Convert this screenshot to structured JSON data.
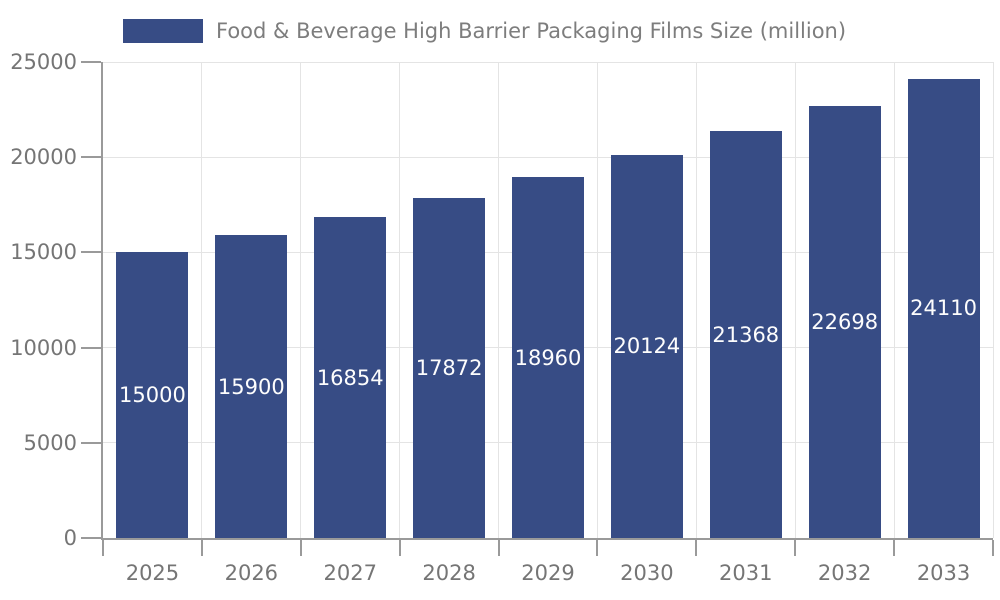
{
  "legend": {
    "label": "Food & Beverage High Barrier Packaging Films Size (million)"
  },
  "chart_data": {
    "type": "bar",
    "title": "Food & Beverage High Barrier Packaging Films Size (million)",
    "categories": [
      "2025",
      "2026",
      "2027",
      "2028",
      "2029",
      "2030",
      "2031",
      "2032",
      "2033"
    ],
    "series": [
      {
        "name": "Food & Beverage High Barrier Packaging Films Size (million)",
        "values": [
          15000,
          15900,
          16854,
          17872,
          18960,
          20124,
          21368,
          22698,
          24110
        ]
      }
    ],
    "xlabel": "",
    "ylabel": "",
    "ylim": [
      0,
      25000
    ],
    "yticks": [
      0,
      5000,
      10000,
      15000,
      20000,
      25000
    ],
    "grid": true,
    "legend_position": "top-left",
    "value_labels": "inside-center",
    "colors": {
      "bar": "#374c85",
      "value_label": "#fdfdfd",
      "axis": "#9a9a9a",
      "gridline": "#e4e4e4",
      "tick_label": "#757575",
      "legend_text": "#7d7d7d",
      "background": "#ffffff"
    }
  }
}
